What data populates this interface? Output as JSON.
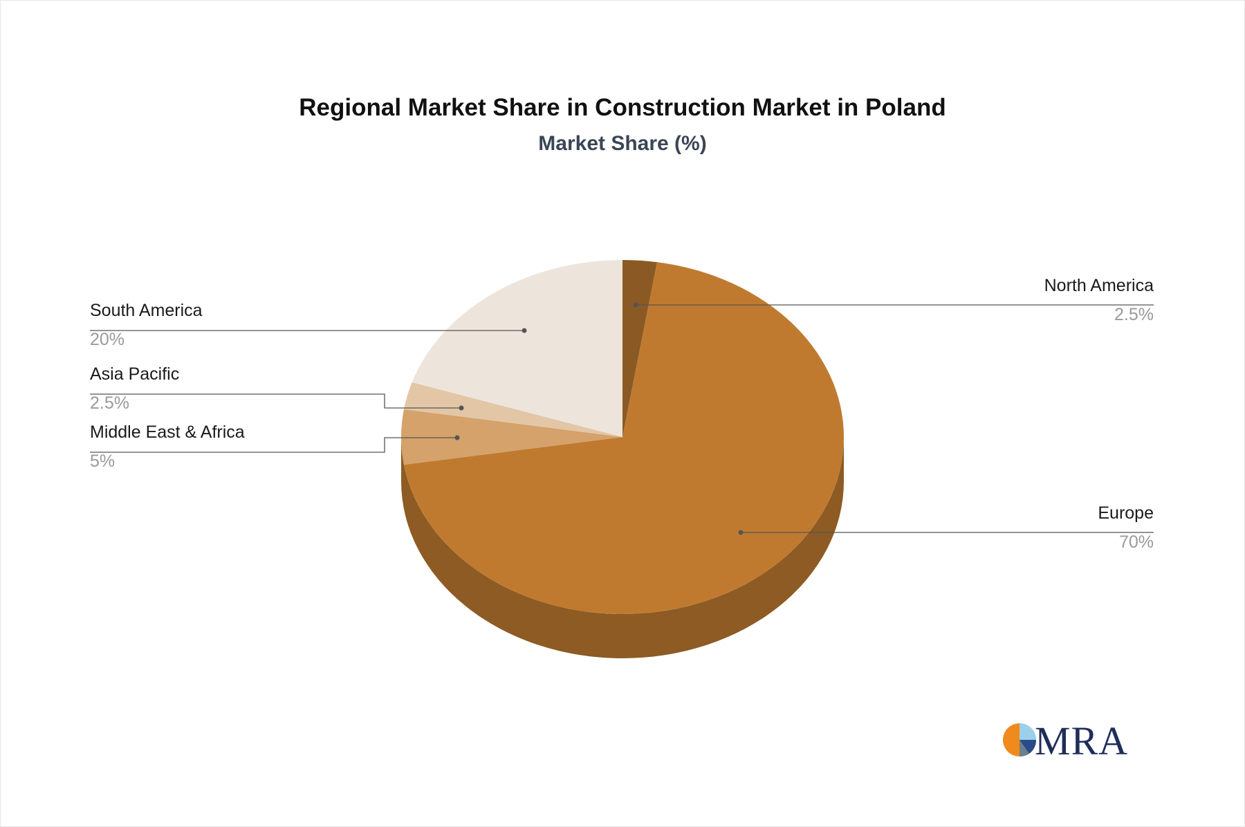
{
  "chart_data": {
    "type": "pie",
    "title": "Regional Market Share in Construction Market in Poland",
    "subtitle": "Market Share (%)",
    "slices": [
      {
        "name": "North America",
        "value": 2.5,
        "label": "2.5%",
        "color": "#8b5a24"
      },
      {
        "name": "Europe",
        "value": 70,
        "label": "70%",
        "color": "#c07a30"
      },
      {
        "name": "Middle East & Africa",
        "value": 5,
        "label": "5%",
        "color": "#d4a26a"
      },
      {
        "name": "Asia Pacific",
        "value": 2.5,
        "label": "2.5%",
        "color": "#e2c6a6"
      },
      {
        "name": "South America",
        "value": 20,
        "label": "20%",
        "color": "#ede5dc"
      }
    ],
    "side_color": "#8d5b23"
  },
  "logo": {
    "text": "MRA"
  }
}
